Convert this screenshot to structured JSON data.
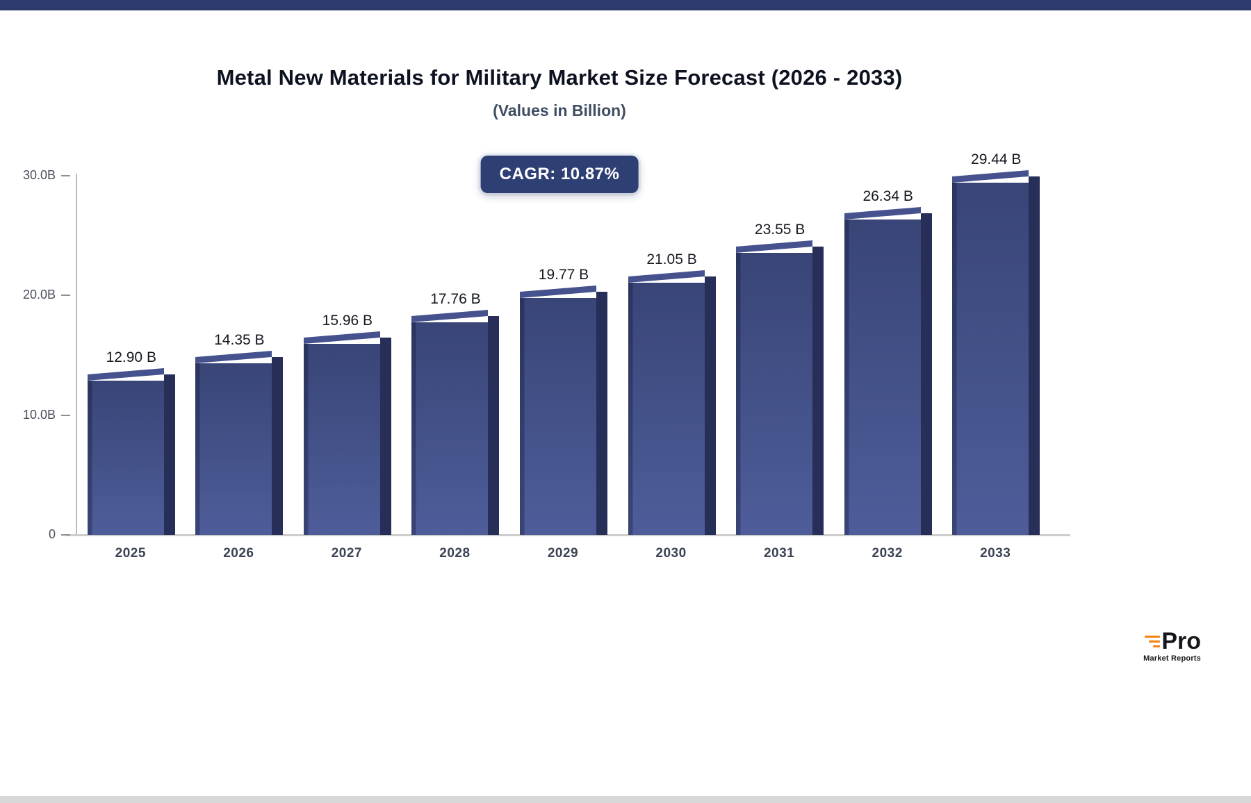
{
  "title": "Metal New Materials for Military Market Size Forecast (2026 - 2033)",
  "subtitle": "(Values in Billion)",
  "cagr": "CAGR: 10.87%",
  "logo": {
    "name": "Pro",
    "sub": "Market Reports"
  },
  "colors": {
    "bar_face_top": "#394577",
    "bar_face_bottom": "#4e5d9a",
    "bar_side": "#272f58",
    "bar_cap": "#46528d",
    "badge_bg": "#2e3f73",
    "top_strip": "#2d3a6c",
    "accent_orange": "#f5820b"
  },
  "chart_data": {
    "type": "bar",
    "title": "Metal New Materials for Military Market Size Forecast (2026 - 2033)",
    "subtitle": "(Values in Billion)",
    "annotation": "CAGR: 10.87%",
    "categories": [
      "2025",
      "2026",
      "2027",
      "2028",
      "2029",
      "2030",
      "2031",
      "2032",
      "2033"
    ],
    "values": [
      12.9,
      14.35,
      15.96,
      17.76,
      19.77,
      21.05,
      23.55,
      26.34,
      29.44
    ],
    "value_labels": [
      "12.90 B",
      "14.35 B",
      "15.96 B",
      "17.76 B",
      "19.77 B",
      "21.05 B",
      "23.55 B",
      "26.34 B",
      "29.44 B"
    ],
    "xlabel": "",
    "ylabel": "",
    "ylim": [
      0,
      30
    ],
    "yticks": [
      {
        "value": 30,
        "label": "30.0B"
      },
      {
        "value": 20,
        "label": "20.0B"
      },
      {
        "value": 10,
        "label": "10.0B"
      },
      {
        "value": 0,
        "label": "0"
      }
    ],
    "grid": false,
    "legend": false
  }
}
